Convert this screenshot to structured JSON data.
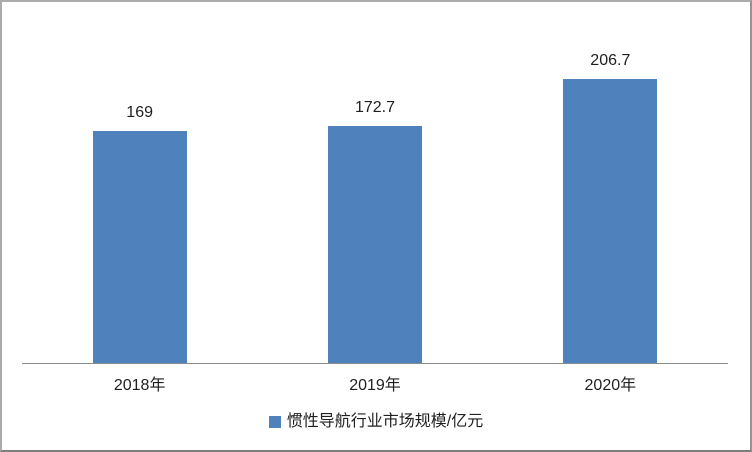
{
  "colors": {
    "bar": "#4F81BD",
    "axis_line": "#8a8a8a",
    "text": "#1f1f1f",
    "frame_border": "#9e9e9e",
    "background": "#ffffff"
  },
  "legend": {
    "label": "惯性导航行业市场规模/亿元",
    "position": "bottom"
  },
  "chart_data": {
    "type": "bar",
    "categories": [
      "2018年",
      "2019年",
      "2020年"
    ],
    "values": [
      169,
      172.7,
      206.7
    ],
    "data_labels": [
      "169",
      "172.7",
      "206.7"
    ],
    "series": [
      {
        "name": "惯性导航行业市场规模/亿元",
        "values": [
          169,
          172.7,
          206.7
        ]
      }
    ],
    "title": "",
    "xlabel": "",
    "ylabel": "",
    "ylim": [
      0,
      250
    ],
    "grid": false,
    "y_axis_visible": false,
    "legend_position": "bottom"
  }
}
